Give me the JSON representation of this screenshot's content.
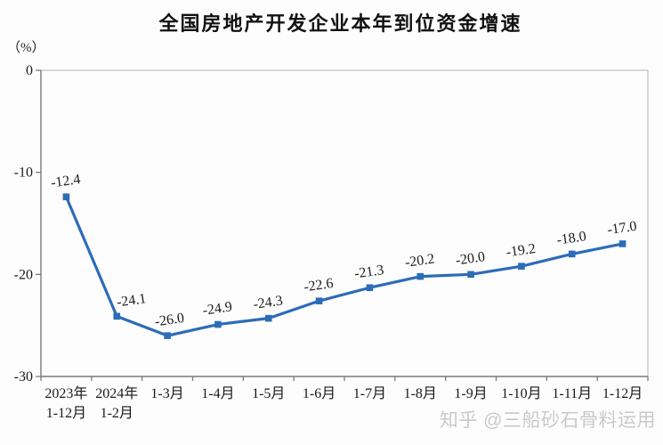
{
  "title": "全国房地产开发企业本年到位资金增速",
  "unit_label": "（%）",
  "watermark": "知乎 @三船砂石骨料运用",
  "chart_data": {
    "type": "line",
    "title": "全国房地产开发企业本年到位资金增速",
    "ylabel": "（%）",
    "categories": [
      "2023年\n1-12月",
      "2024年\n1-2月",
      "1-3月",
      "1-4月",
      "1-5月",
      "1-6月",
      "1-7月",
      "1-8月",
      "1-9月",
      "1-10月",
      "1-11月",
      "1-12月"
    ],
    "values": [
      -12.4,
      -24.1,
      -26.0,
      -24.9,
      -24.3,
      -22.6,
      -21.3,
      -20.2,
      -20.0,
      -19.2,
      -18.0,
      -17.0
    ],
    "ylim": [
      -30,
      0
    ],
    "yticks": [
      0,
      -10,
      -20,
      -30
    ],
    "grid": false,
    "legend": "none",
    "line_color": "#2c6cb8",
    "label_color": "#1a1a1a"
  }
}
